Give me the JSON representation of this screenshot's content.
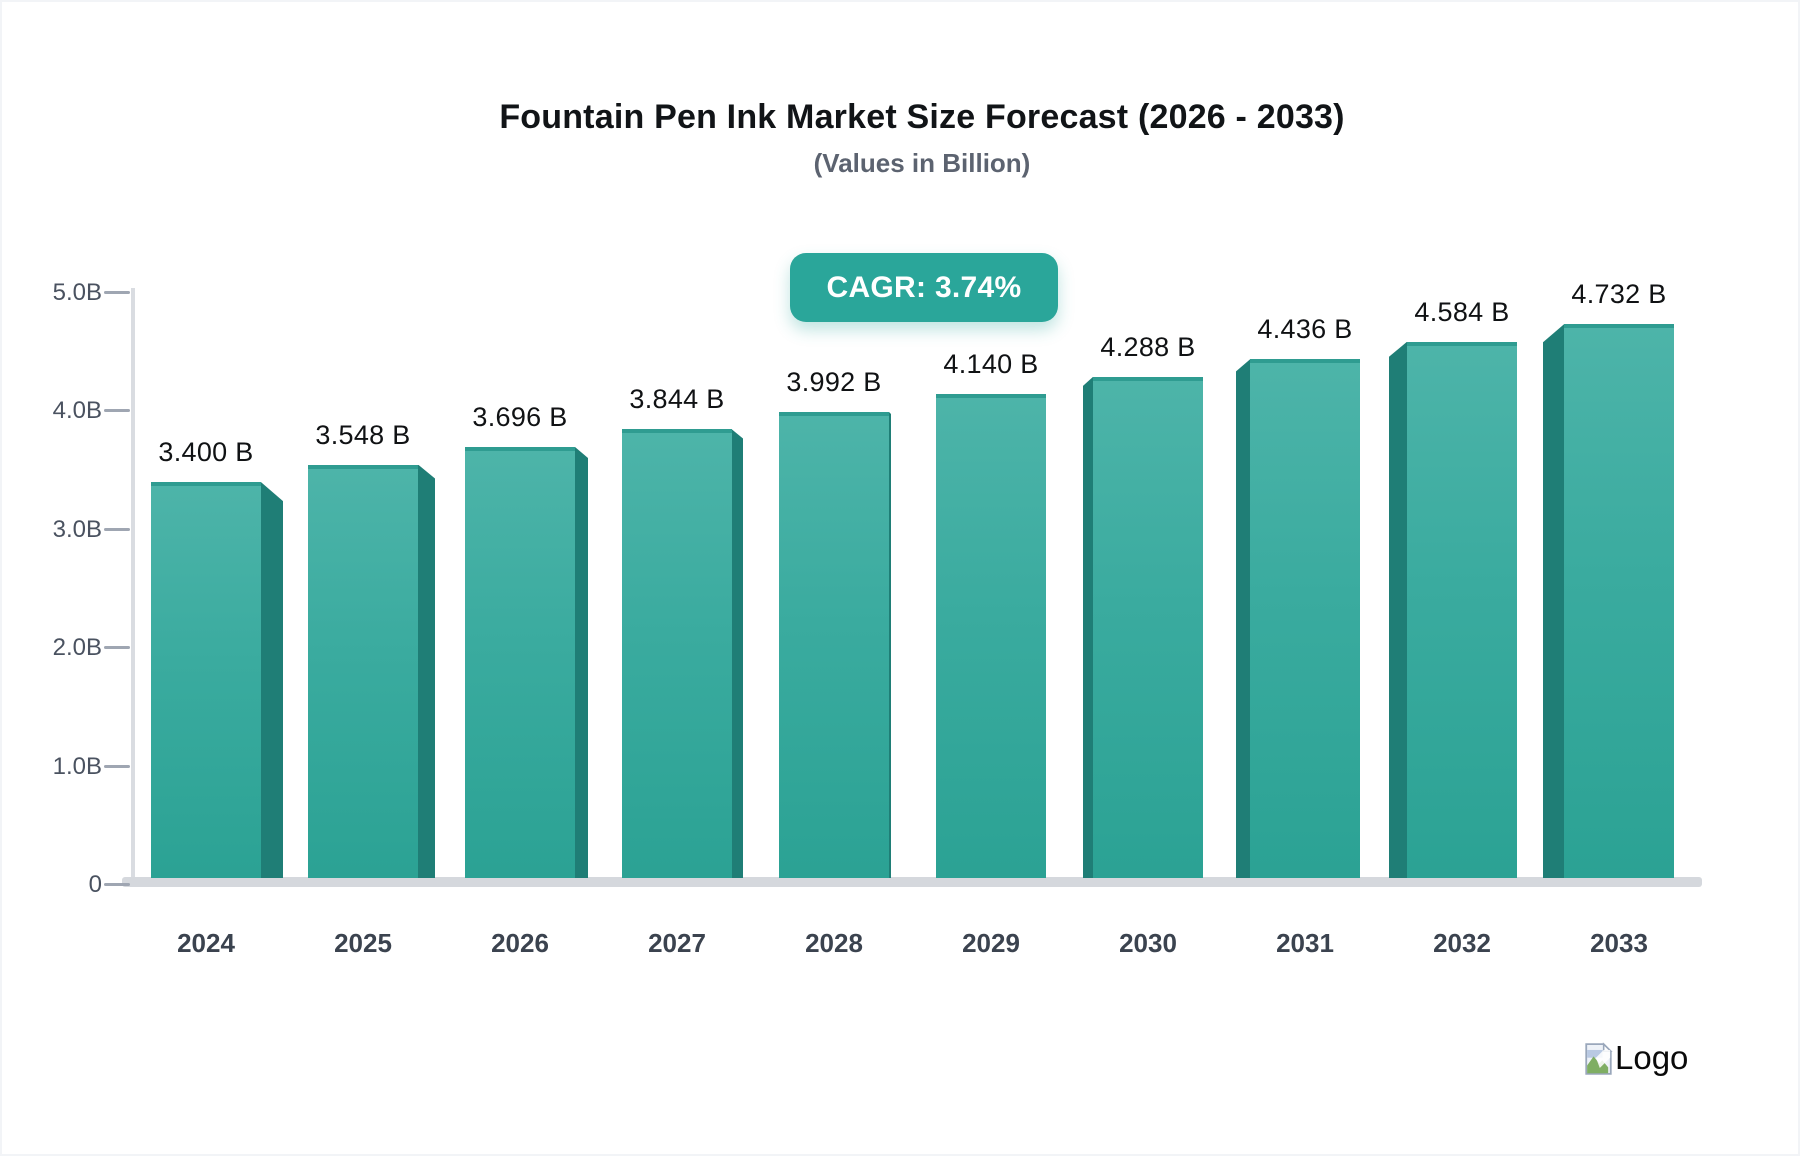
{
  "header": {
    "title": "Fountain Pen Ink Market Size Forecast (2026 - 2033)",
    "subtitle": "(Values in Billion)",
    "cagr_label": "CAGR: 3.74%"
  },
  "chart_data": {
    "type": "bar",
    "title": "Fountain Pen Ink Market Size Forecast (2026 - 2033)",
    "subtitle": "(Values in Billion)",
    "cagr": "3.74%",
    "categories": [
      "2024",
      "2025",
      "2026",
      "2027",
      "2028",
      "2029",
      "2030",
      "2031",
      "2032",
      "2033"
    ],
    "values": [
      3.4,
      3.548,
      3.696,
      3.844,
      3.992,
      4.14,
      4.288,
      4.436,
      4.584,
      4.732
    ],
    "value_labels": [
      "3.400 B",
      "3.548 B",
      "3.696 B",
      "3.844 B",
      "3.992 B",
      "4.140 B",
      "4.288 B",
      "4.436 B",
      "4.584 B",
      "4.732 B"
    ],
    "xlabel": "",
    "ylabel": "",
    "ylim": [
      0,
      5
    ],
    "grid": false,
    "legend": false,
    "yticks": [
      {
        "label": "0",
        "value": 0
      },
      {
        "label": "1.0B",
        "value": 1
      },
      {
        "label": "2.0B",
        "value": 2
      },
      {
        "label": "3.0B",
        "value": 3
      },
      {
        "label": "4.0B",
        "value": 4
      },
      {
        "label": "5.0B",
        "value": 5
      }
    ]
  },
  "colors": {
    "bar_front_top": "#4db4a9",
    "bar_front_bottom": "#2ba294",
    "bar_side": "#1f7e76",
    "badge_bg": "#2aa69a",
    "axis_line": "#d9dce1",
    "baseline": "#d5d8dd"
  },
  "footer": {
    "logo_text": "Logo"
  }
}
